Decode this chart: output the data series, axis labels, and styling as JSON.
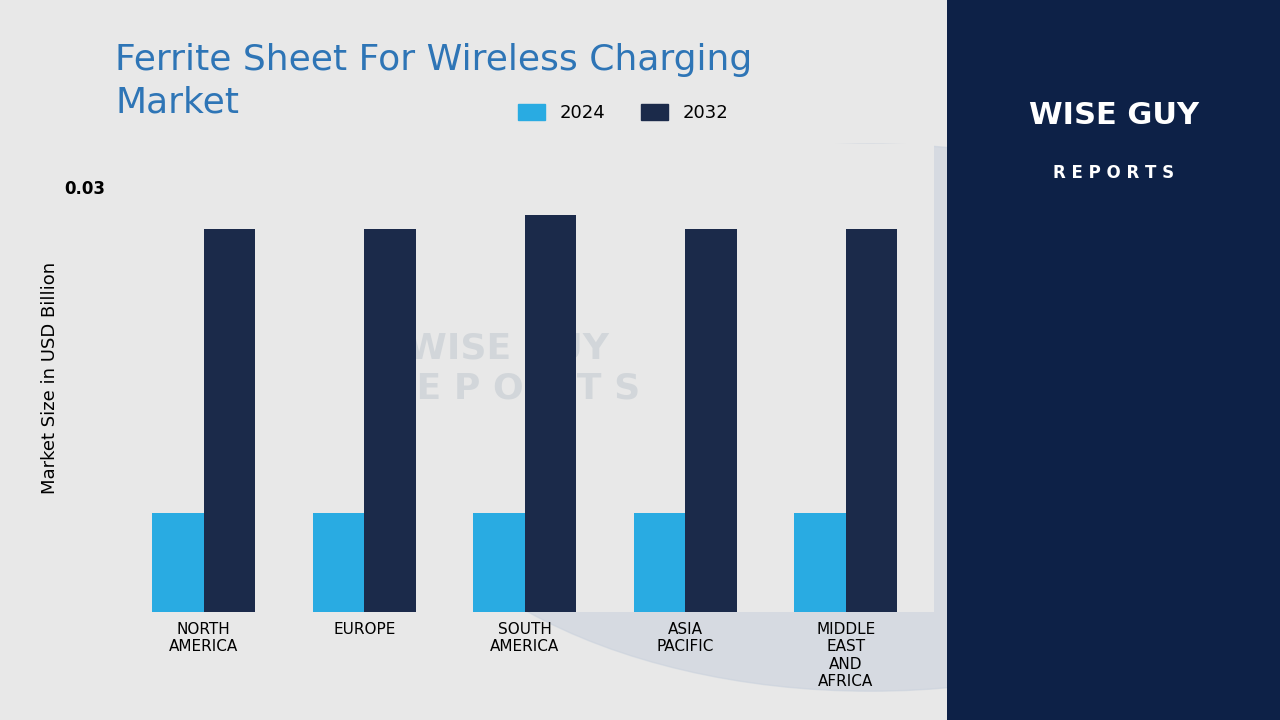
{
  "title": "Ferrite Sheet For Wireless Charging\nMarket",
  "title_color": "#2E75B6",
  "title_fontsize": 26,
  "ylabel": "Market Size in USD Billion",
  "ylabel_fontsize": 13,
  "background_color": "#E8E8E8",
  "right_panel_color": "#0D2147",
  "categories": [
    "NORTH\nAMERICA",
    "EUROPE",
    "SOUTH\nAMERICA",
    "ASIA\nPACIFIC",
    "MIDDLE\nEAST\nAND\nAFRICA"
  ],
  "values_2024": [
    0.007,
    0.007,
    0.007,
    0.007,
    0.007
  ],
  "values_2032": [
    0.027,
    0.027,
    0.028,
    0.027,
    0.027
  ],
  "color_2024": "#29ABE2",
  "color_2032": "#1B2A4A",
  "ylim": [
    0,
    0.033
  ],
  "yticks": [
    0.03
  ],
  "bar_width": 0.32,
  "legend_labels": [
    "2024",
    "2032"
  ],
  "legend_fontsize": 13,
  "tick_label_fontsize": 11,
  "ytick_fontsize": 12,
  "ytick_fontweight": "bold",
  "wiseguy_line1": "WISE GUY",
  "wiseguy_line2": "R E P O R T S",
  "watermark_text": "WISE GUY\nR E P O R T S",
  "circle_color": "#c8d0dc",
  "circle_alpha": 0.55
}
